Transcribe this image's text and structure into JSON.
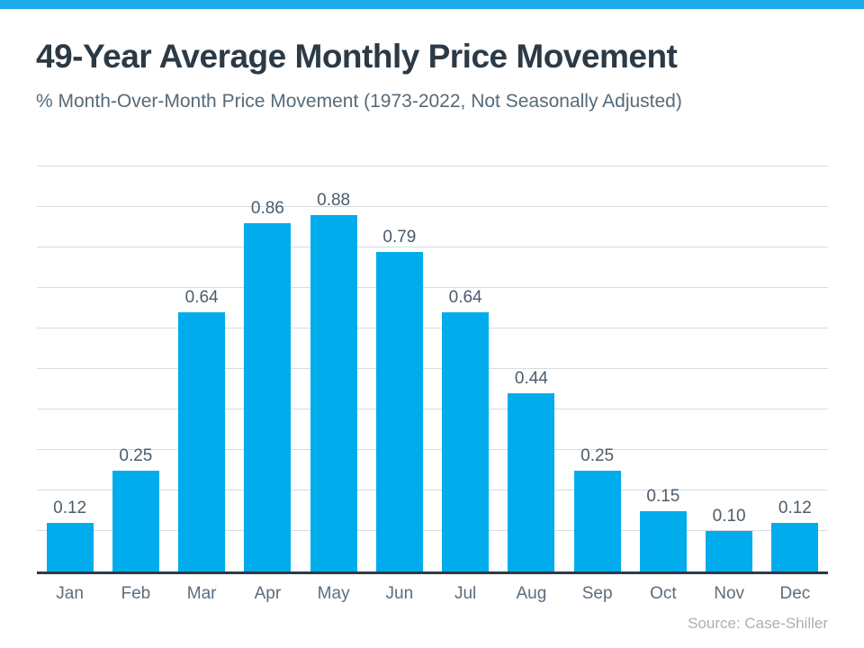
{
  "accent": {
    "topbar_color": "#1aabea"
  },
  "header": {
    "title": "49-Year Average Monthly Price Movement",
    "subtitle": "% Month-Over-Month Price Movement (1973-2022, Not Seasonally Adjusted)"
  },
  "chart_data": {
    "type": "bar",
    "title": "49-Year Average Monthly Price Movement",
    "subtitle": "% Month-Over-Month Price Movement (1973-2022, Not Seasonally Adjusted)",
    "categories": [
      "Jan",
      "Feb",
      "Mar",
      "Apr",
      "May",
      "Jun",
      "Jul",
      "Aug",
      "Sep",
      "Oct",
      "Nov",
      "Dec"
    ],
    "values": [
      0.12,
      0.25,
      0.64,
      0.86,
      0.88,
      0.79,
      0.64,
      0.44,
      0.25,
      0.15,
      0.1,
      0.12
    ],
    "value_labels": [
      "0.12",
      "0.25",
      "0.64",
      "0.86",
      "0.88",
      "0.79",
      "0.64",
      "0.44",
      "0.25",
      "0.15",
      "0.10",
      "0.12"
    ],
    "xlabel": "",
    "ylabel": "",
    "ylim": [
      0,
      1.0
    ],
    "gridline_step": 0.1,
    "grid": true,
    "legend_position": "none",
    "bar_color": "#00aceb",
    "gridline_color": "#d9dbdd",
    "axis_color": "#2d3b48"
  },
  "footer": {
    "source": "Source: Case-Shiller"
  }
}
